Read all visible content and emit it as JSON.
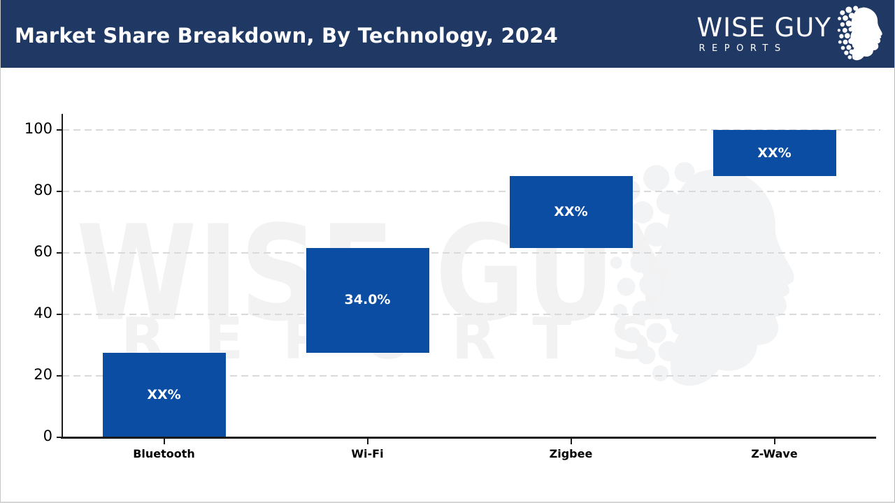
{
  "header": {
    "title": "Market Share Breakdown, By Technology, 2024",
    "background_color": "#1f3864",
    "logo": {
      "line1": "WISE GUY",
      "line2": "REPORTS"
    }
  },
  "watermark": {
    "line1": "WISE GUY",
    "line2": "REPORTS"
  },
  "chart_data": {
    "type": "bar",
    "subtype": "waterfall (floating stacked segments)",
    "title": "Market Share Breakdown, By Technology, 2024",
    "categories": [
      "Bluetooth",
      "Wi-Fi",
      "Zigbee",
      "Z-Wave"
    ],
    "segments": [
      {
        "category": "Bluetooth",
        "start": 0,
        "end": 27.5,
        "value_label": "XX%"
      },
      {
        "category": "Wi-Fi",
        "start": 27.5,
        "end": 61.5,
        "value_label": "34.0%"
      },
      {
        "category": "Zigbee",
        "start": 61.5,
        "end": 85.0,
        "value_label": "XX%"
      },
      {
        "category": "Z-Wave",
        "start": 85.0,
        "end": 100.0,
        "value_label": "XX%"
      }
    ],
    "xlabel": "",
    "ylabel": "",
    "y_ticks": [
      0,
      20,
      40,
      60,
      80,
      100
    ],
    "ylim": [
      0,
      105
    ],
    "grid": "horizontal dashed",
    "legend": "none",
    "bar_color": "#0b4da2",
    "bar_label_color": "#ffffff",
    "axis_color": "#1a1a1a",
    "gridline_color": "#d9d9d9"
  }
}
